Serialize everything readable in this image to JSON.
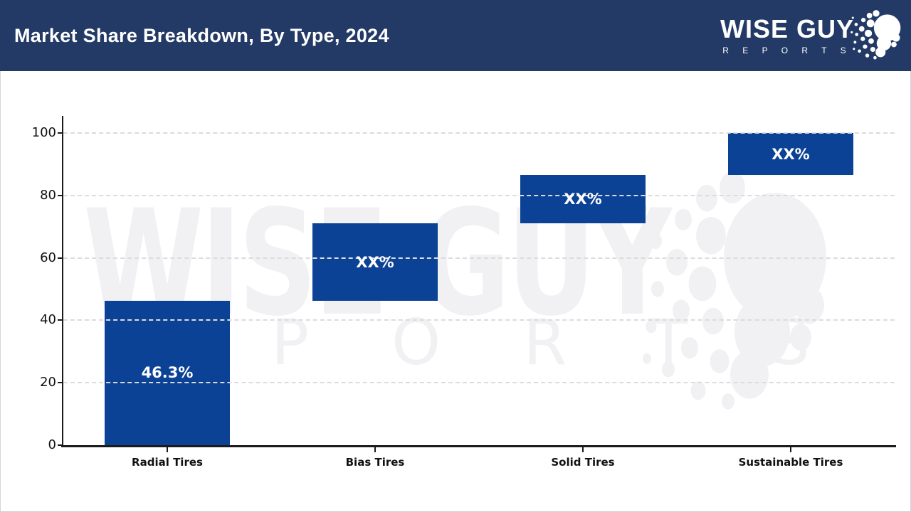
{
  "header": {
    "title": "Market Share Breakdown, By Type, 2024",
    "logo": {
      "line1": "WISE GUY",
      "line2": "R E P O R T S"
    }
  },
  "watermark": {
    "line1": "WISE GUY",
    "line2": "P O R T S"
  },
  "colors": {
    "header_bg": "#233a66",
    "bar": "#0b4295",
    "bar_label": "#ffffff",
    "grid": "#dcdcdc",
    "axis": "#1a1a1a",
    "tick_label": "#111111",
    "watermark": "#f1f1f4",
    "figure_border": "#d6d6d6"
  },
  "chart_data": {
    "type": "bar",
    "subtype": "waterfall",
    "title": "Market Share Breakdown, By Type, 2024",
    "xlabel": "",
    "ylabel": "",
    "categories": [
      "Radial Tires",
      "Bias Tires",
      "Solid Tires",
      "Sustainable Tires"
    ],
    "segments": [
      {
        "category": "Radial Tires",
        "start": 0,
        "end": 46.3,
        "label": "46.3%"
      },
      {
        "category": "Bias Tires",
        "start": 46.3,
        "end": 71.0,
        "label": "XX%"
      },
      {
        "category": "Solid Tires",
        "start": 71.0,
        "end": 86.5,
        "label": "XX%"
      },
      {
        "category": "Sustainable Tires",
        "start": 86.5,
        "end": 100.0,
        "label": "XX%"
      }
    ],
    "yticks": [
      0,
      20,
      40,
      60,
      80,
      100
    ],
    "ylim": [
      0,
      105
    ],
    "grid": "horizontal-dashed",
    "legend": "none"
  }
}
